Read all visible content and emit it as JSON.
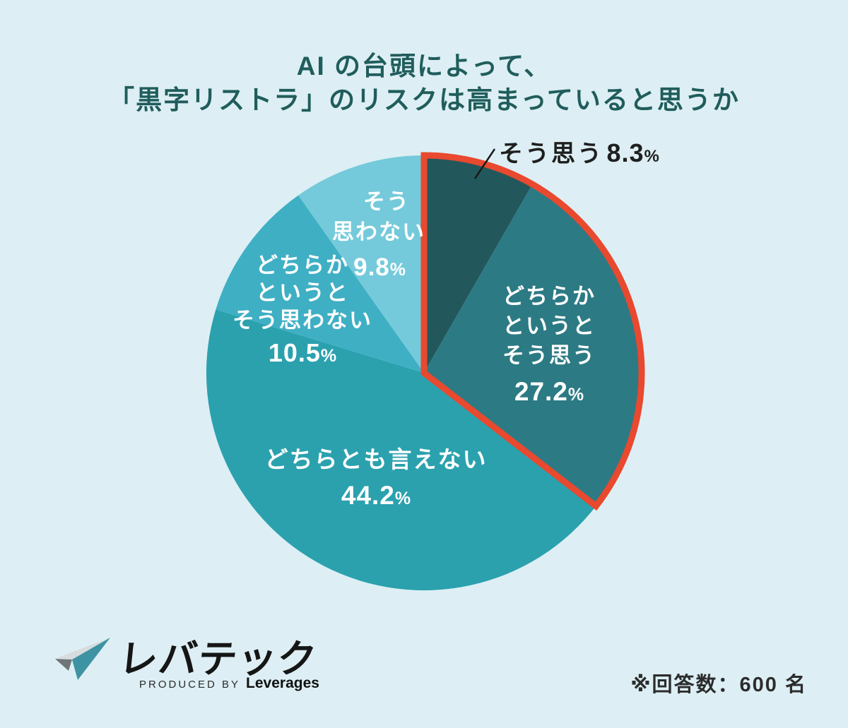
{
  "title": {
    "line1": "AI の台頭によって、",
    "line2": "「黒字リストラ」のリスクは高まっていると思うか"
  },
  "chart_data": {
    "type": "pie",
    "title": "AI の台頭によって、「黒字リストラ」のリスクは高まっていると思うか",
    "unit": "%",
    "start_angle_deg": 0,
    "direction": "clockwise",
    "slices": [
      {
        "label": "そう思う",
        "value": 8.3,
        "color": "#22585c",
        "highlighted": true
      },
      {
        "label": "どちらかというとそう思う",
        "value": 27.2,
        "color": "#2c7a84",
        "highlighted": true
      },
      {
        "label": "どちらとも言えない",
        "value": 44.2,
        "color": "#2ba1ae",
        "highlighted": false
      },
      {
        "label": "どちらかというとそう思わない",
        "value": 10.5,
        "color": "#3fafc4",
        "highlighted": false
      },
      {
        "label": "そう思わない",
        "value": 9.8,
        "color": "#74cada",
        "highlighted": false
      }
    ],
    "highlight_outline_color": "#e8492f",
    "legend_position": "none",
    "annotation": "※回答数：600 名"
  },
  "labels": {
    "agree": {
      "text": "そう思う",
      "value": "8.3",
      "unit": "%"
    },
    "somewhat_agree": {
      "line1": "どちらか",
      "line2": "というと",
      "line3": "そう思う",
      "value": "27.2",
      "unit": "%"
    },
    "neutral": {
      "text": "どちらとも言えない",
      "value": "44.2",
      "unit": "%"
    },
    "somewhat_disagree": {
      "line1": "どちらか",
      "line2": "というと",
      "line3": "そう思わない",
      "value": "10.5",
      "unit": "%"
    },
    "disagree": {
      "line1": "そう",
      "line2": "思わない",
      "value": "9.8",
      "unit": "%"
    }
  },
  "footer": {
    "note": "※回答数：600 名",
    "logo_text": "レバテック",
    "produced_by": "PRODUCED BY",
    "brand": "Leverages"
  },
  "colors": {
    "background": "#ddeff4",
    "title": "#205d5c",
    "label_dark": "#1f1f1f",
    "label_light": "#ffffff",
    "leader_line": "#1a1a1a",
    "highlight": "#e8492f"
  }
}
